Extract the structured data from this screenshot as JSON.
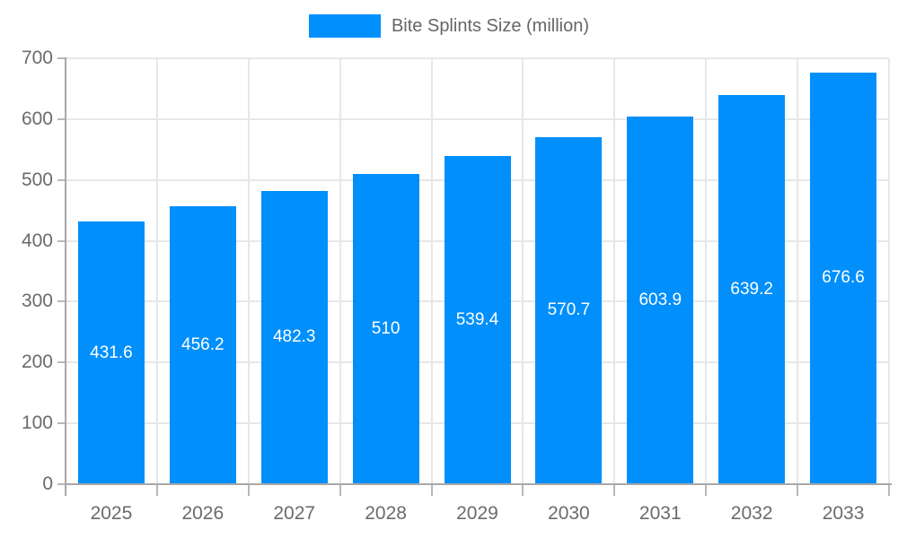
{
  "legend": {
    "items": [
      {
        "label": "Bite Splints Size (million)",
        "color": "#008FFB"
      }
    ]
  },
  "chart_data": {
    "type": "bar",
    "title": "",
    "series": [
      {
        "name": "Bite Splints Size (million)",
        "values": [
          431.6,
          456.2,
          482.3,
          510,
          539.4,
          570.7,
          603.9,
          639.2,
          676.6
        ],
        "value_labels": [
          "431.6",
          "456.2",
          "482.3",
          "510",
          "539.4",
          "570.7",
          "603.9",
          "639.2",
          "676.6"
        ]
      }
    ],
    "categories": [
      "2025",
      "2026",
      "2027",
      "2028",
      "2029",
      "2030",
      "2031",
      "2032",
      "2033"
    ],
    "xlabel": "",
    "ylabel": "",
    "ylim": [
      0,
      700
    ],
    "yticks": [
      0,
      100,
      200,
      300,
      400,
      500,
      600,
      700
    ],
    "grid": true,
    "legend_position": "top-center",
    "value_labels_position": "inside-center"
  },
  "colors": {
    "bar": "#008FFB",
    "grid": "#e7e7e7",
    "axis": "#a8a8a8",
    "tick": "#b8b8b8",
    "axis_text": "#6b6b6b",
    "value_text": "#ffffff",
    "legend_text": "#666666",
    "background": "#ffffff"
  }
}
